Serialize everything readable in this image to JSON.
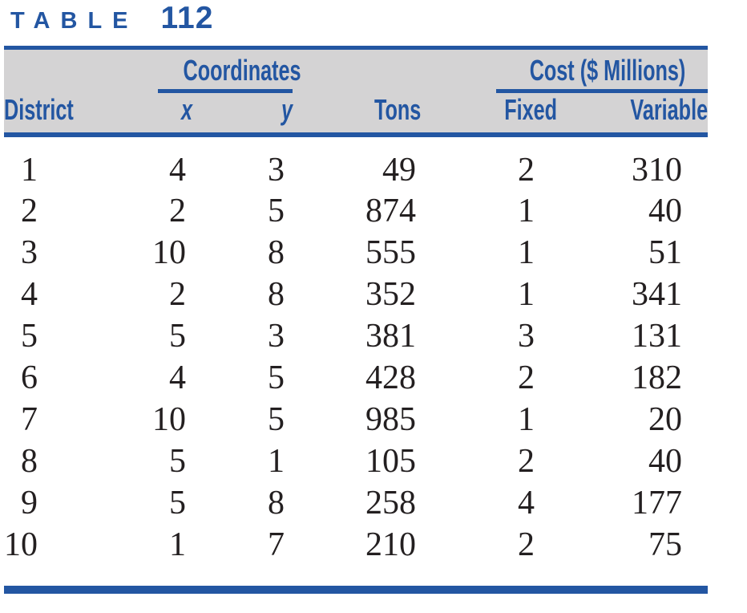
{
  "title": {
    "label": "TABLE",
    "number": "112"
  },
  "colors": {
    "accent_blue": "#2356A2",
    "header_bg": "#D4D3D4",
    "ink": "#231F20"
  },
  "table": {
    "group_headers": {
      "coordinates": "Coordinates",
      "cost": "Cost ($ Millions)"
    },
    "columns": {
      "district": "District",
      "x": "x",
      "y": "y",
      "tons": "Tons",
      "fixed": "Fixed",
      "variable": "Variable"
    },
    "rows": [
      {
        "district": "1",
        "x": "4",
        "y": "3",
        "tons": "49",
        "fixed": "2",
        "variable": "310"
      },
      {
        "district": "2",
        "x": "2",
        "y": "5",
        "tons": "874",
        "fixed": "1",
        "variable": "40"
      },
      {
        "district": "3",
        "x": "10",
        "y": "8",
        "tons": "555",
        "fixed": "1",
        "variable": "51"
      },
      {
        "district": "4",
        "x": "2",
        "y": "8",
        "tons": "352",
        "fixed": "1",
        "variable": "341"
      },
      {
        "district": "5",
        "x": "5",
        "y": "3",
        "tons": "381",
        "fixed": "3",
        "variable": "131"
      },
      {
        "district": "6",
        "x": "4",
        "y": "5",
        "tons": "428",
        "fixed": "2",
        "variable": "182"
      },
      {
        "district": "7",
        "x": "10",
        "y": "5",
        "tons": "985",
        "fixed": "1",
        "variable": "20"
      },
      {
        "district": "8",
        "x": "5",
        "y": "1",
        "tons": "105",
        "fixed": "2",
        "variable": "40"
      },
      {
        "district": "9",
        "x": "5",
        "y": "8",
        "tons": "258",
        "fixed": "4",
        "variable": "177"
      },
      {
        "district": "10",
        "x": "1",
        "y": "7",
        "tons": "210",
        "fixed": "2",
        "variable": "75"
      }
    ]
  }
}
